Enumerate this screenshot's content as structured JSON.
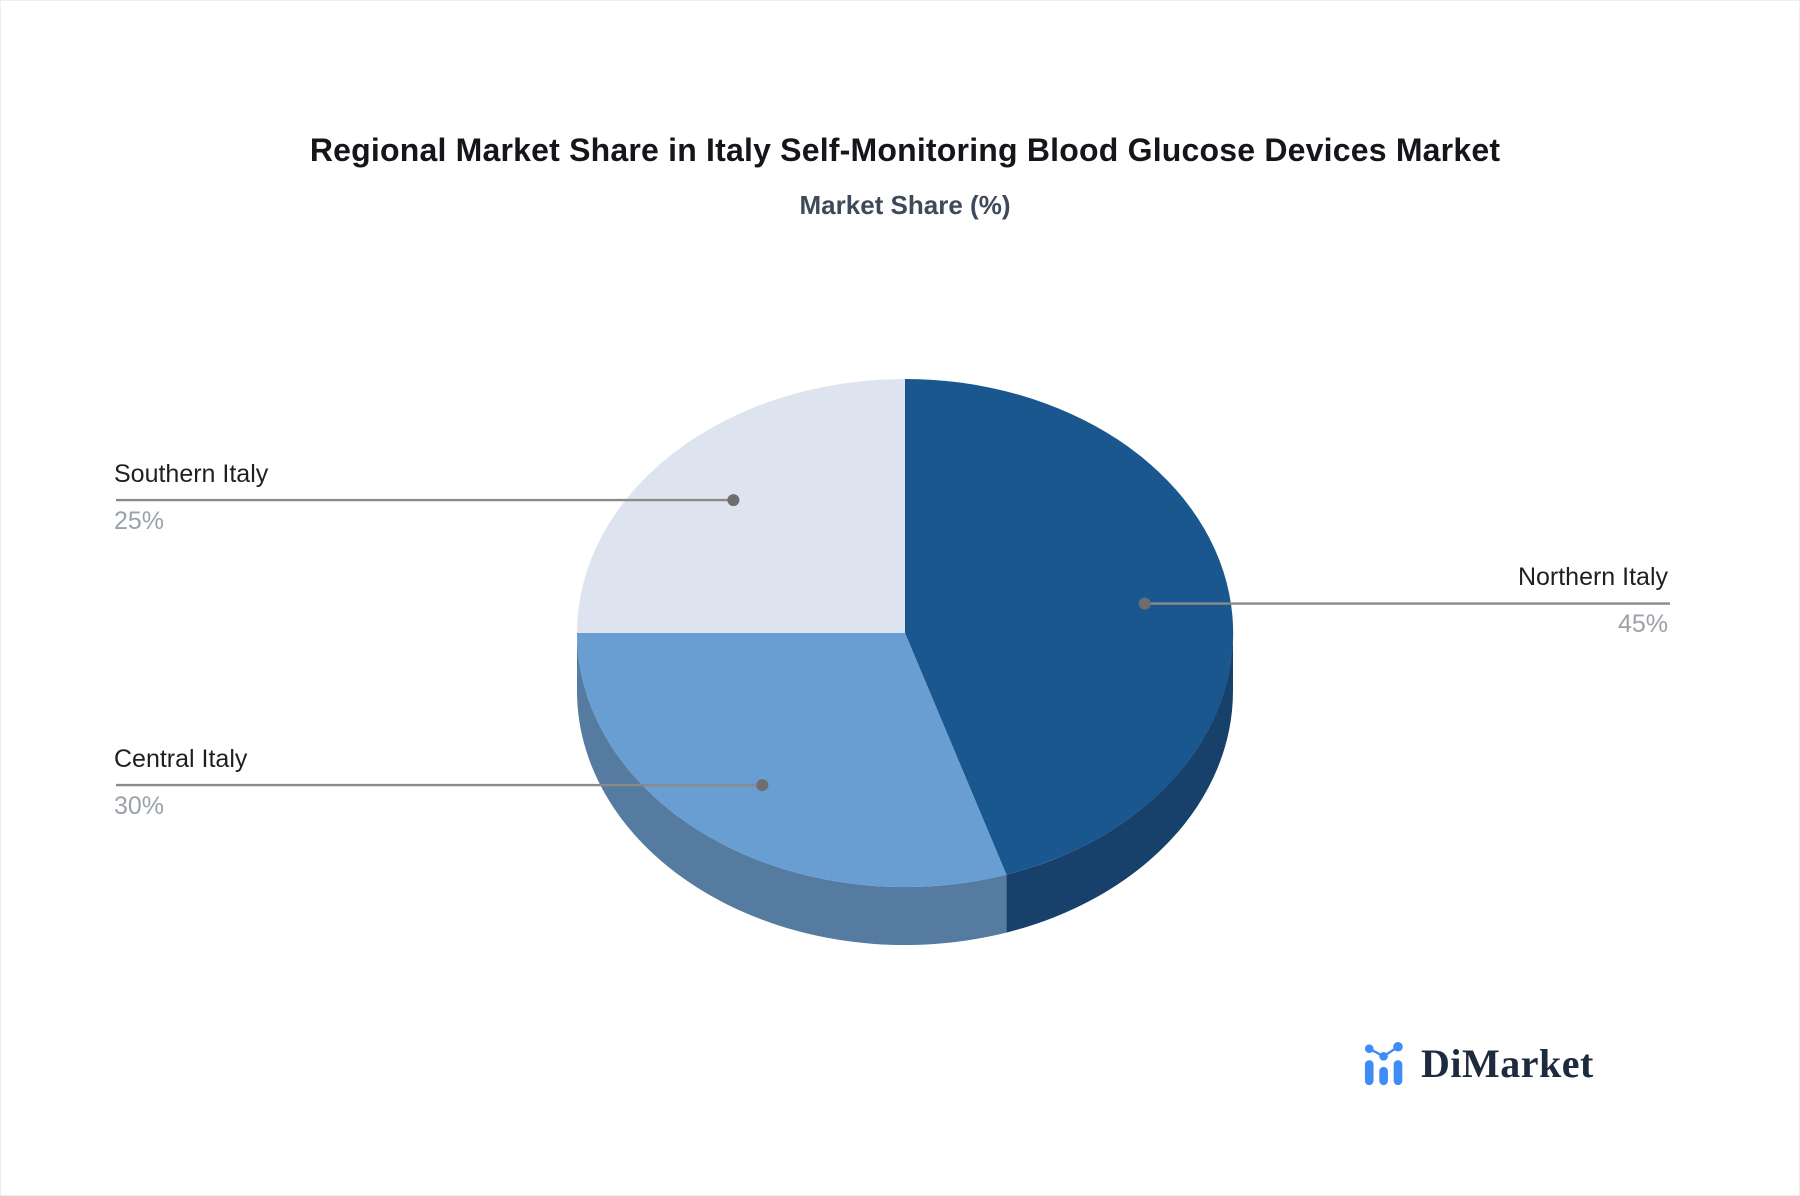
{
  "page": {
    "title": "Regional Market Share in Italy Self-Monitoring Blood Glucose Devices Market",
    "subtitle": "Market Share (%)"
  },
  "chart_data": {
    "type": "pie",
    "title": "Regional Market Share in Italy Self-Monitoring Blood Glucose Devices Market",
    "subtitle": "Market Share (%)",
    "unit": "%",
    "style": "3d-pie",
    "start_angle_deg": 0,
    "direction": "clockwise",
    "legend_position": "none",
    "slices": [
      {
        "label": "Northern Italy",
        "value": 45,
        "display": "45%",
        "color": "#1B578F",
        "side_color": "#17406B",
        "label_side": "right"
      },
      {
        "label": "Central Italy",
        "value": 30,
        "display": "30%",
        "color": "#699ED2",
        "side_color": "#557BA0",
        "label_side": "left"
      },
      {
        "label": "Southern Italy",
        "value": 25,
        "display": "25%",
        "color": "#DEE4EF",
        "side_color": "#B9C2D1",
        "label_side": "left"
      }
    ]
  },
  "branding": {
    "logo_text": "DiMarket",
    "logo_icon": "bar-line-chart-icon",
    "icon_color": "#3E8DF6",
    "text_color": "#1E2B3E"
  },
  "colors": {
    "leader_line": "#8A8A8A",
    "leader_dot": "#6E6E6E",
    "label_text": "#1F1F1F",
    "pct_text": "#9BA1A8",
    "background": "#FFFFFF"
  }
}
